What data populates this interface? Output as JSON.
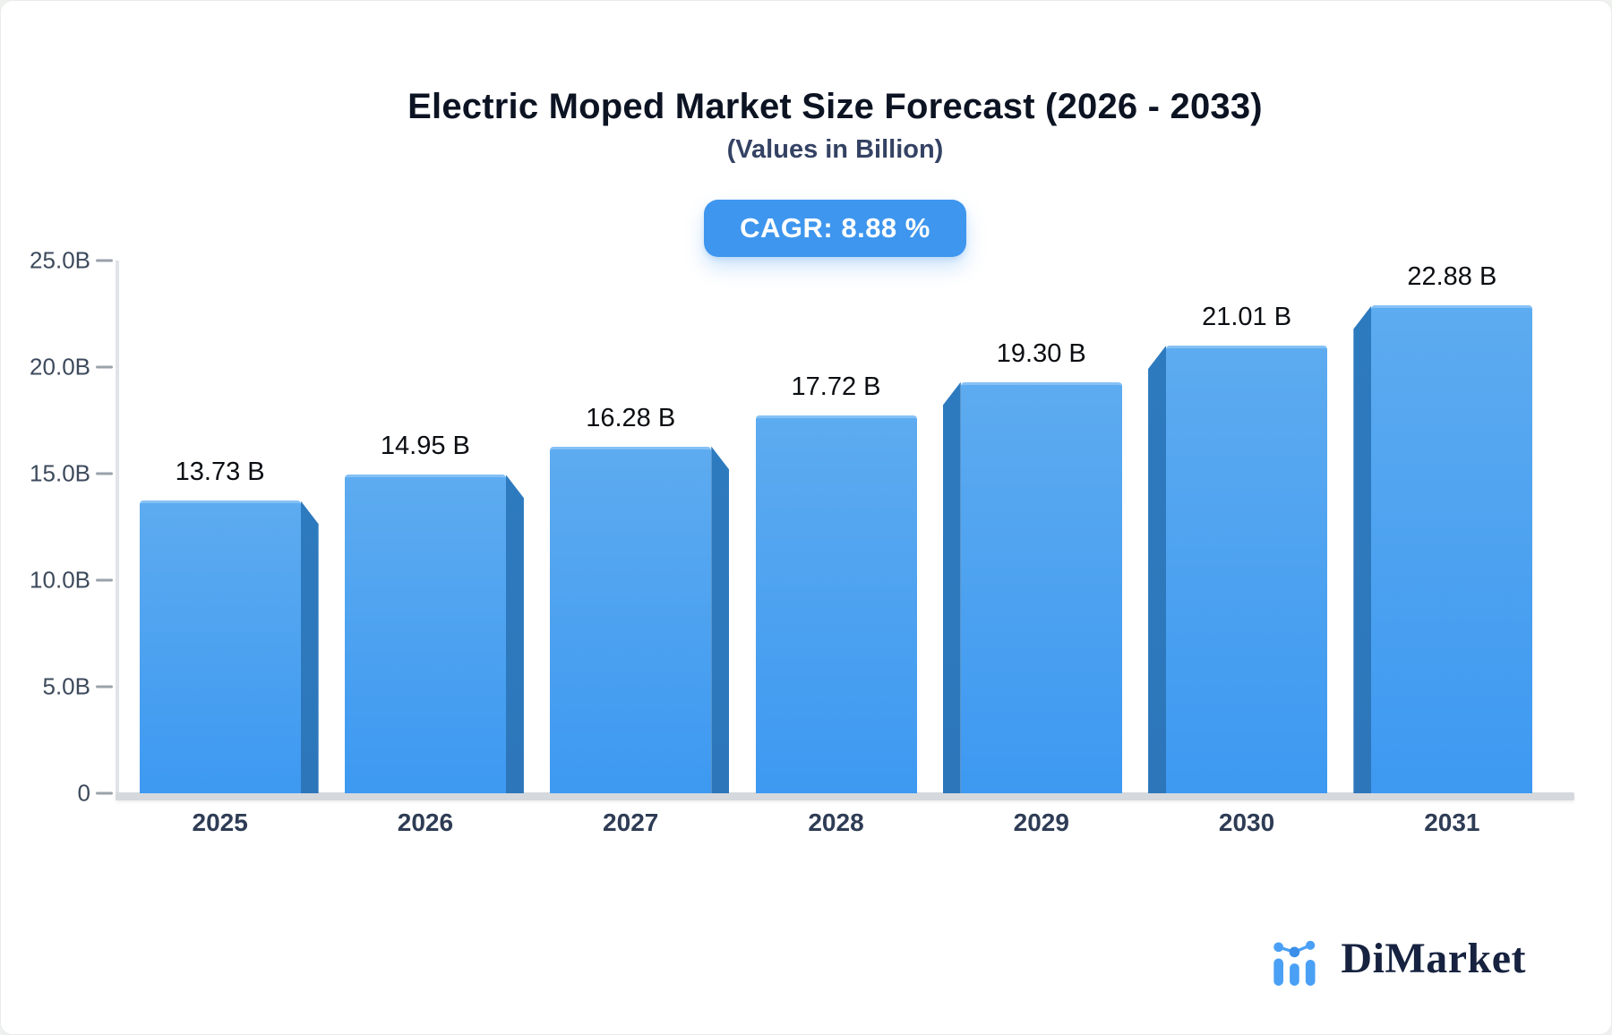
{
  "header": {
    "title": "Electric Moped Market Size Forecast (2026 - 2033)",
    "subtitle": "(Values in Billion)",
    "cagr_badge": "CAGR: 8.88 %"
  },
  "chart_data": {
    "type": "bar",
    "categories": [
      "2025",
      "2026",
      "2027",
      "2028",
      "2029",
      "2030",
      "2031"
    ],
    "values": [
      13.73,
      14.95,
      16.28,
      17.72,
      19.3,
      21.01,
      22.88
    ],
    "value_labels": [
      "13.73 B",
      "14.95 B",
      "16.28 B",
      "17.72 B",
      "19.30 B",
      "21.01 B",
      "22.88 B"
    ],
    "unit": "Billion",
    "title": "Electric Moped Market Size Forecast (2026 - 2033)",
    "xlabel": "",
    "ylabel": "",
    "ylim": [
      0,
      25
    ],
    "yticks": [
      {
        "label": "25.0B",
        "value": 25
      },
      {
        "label": "20.0B",
        "value": 20
      },
      {
        "label": "15.0B",
        "value": 15
      },
      {
        "label": "10.0B",
        "value": 10
      },
      {
        "label": "5.0B",
        "value": 5
      },
      {
        "label": "0",
        "value": 0
      }
    ],
    "grid": false,
    "legend": false,
    "bar_style_3d": true,
    "bevel_sides": [
      "right",
      "right",
      "right",
      "none",
      "left",
      "left",
      "left"
    ]
  },
  "footer": {
    "brand": "DiMarket",
    "logo_icon": "mini-bar-line-chart-icon"
  },
  "colors": {
    "accent": "#3e96ee",
    "badge_text": "#ffffff",
    "bar_face_top": "#5dabf0",
    "bar_face_bottom": "#3d99f1",
    "bar_bevel": "#2d76ba",
    "bar_top_highlight": "#85c1f6",
    "baseline": "#d5d9dd",
    "axis_line": "#e0e3e7",
    "tick": "#9aa2ab",
    "ytick_text": "#3d4a5c",
    "xtick_text": "#2e3c55",
    "title": "#0c1322",
    "subtitle": "#344263",
    "value_label": "#0a0d12",
    "logo_blue": "#4aa0f5",
    "logo_dot_mid": "#3b8ee8",
    "logo_text": "#16223f"
  }
}
